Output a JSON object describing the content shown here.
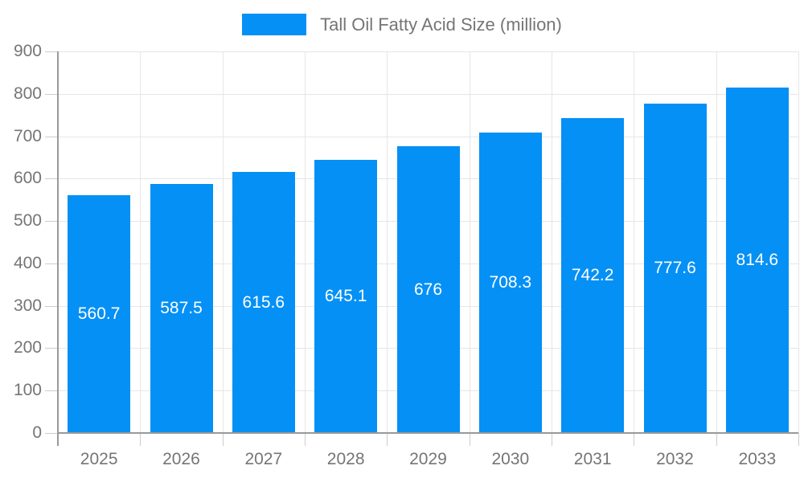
{
  "chart_data": {
    "type": "bar",
    "title": "Tall Oil Fatty Acid Size (million)",
    "categories": [
      "2025",
      "2026",
      "2027",
      "2028",
      "2029",
      "2030",
      "2031",
      "2032",
      "2033"
    ],
    "values": [
      560.7,
      587.5,
      615.6,
      645.1,
      676,
      708.3,
      742.2,
      777.6,
      814.6
    ],
    "value_labels": [
      "560.7",
      "587.5",
      "615.6",
      "645.1",
      "676",
      "708.3",
      "742.2",
      "777.6",
      "814.6"
    ],
    "xlabel": "",
    "ylabel": "",
    "ylim": [
      0,
      900
    ],
    "ytick_step": 100,
    "ytick_labels": [
      "0",
      "100",
      "200",
      "300",
      "400",
      "500",
      "600",
      "700",
      "800",
      "900"
    ],
    "grid": true,
    "legend_position": "top-center",
    "value_label_position": "bar-center",
    "colors": {
      "bar": "#0590f5",
      "axis": "#999999",
      "grid": "#e6e6e6",
      "tick": "#cccccc",
      "tick_label": "#757575",
      "legend_text": "#757575",
      "value_label": "#ffffff",
      "background": "#ffffff"
    }
  }
}
